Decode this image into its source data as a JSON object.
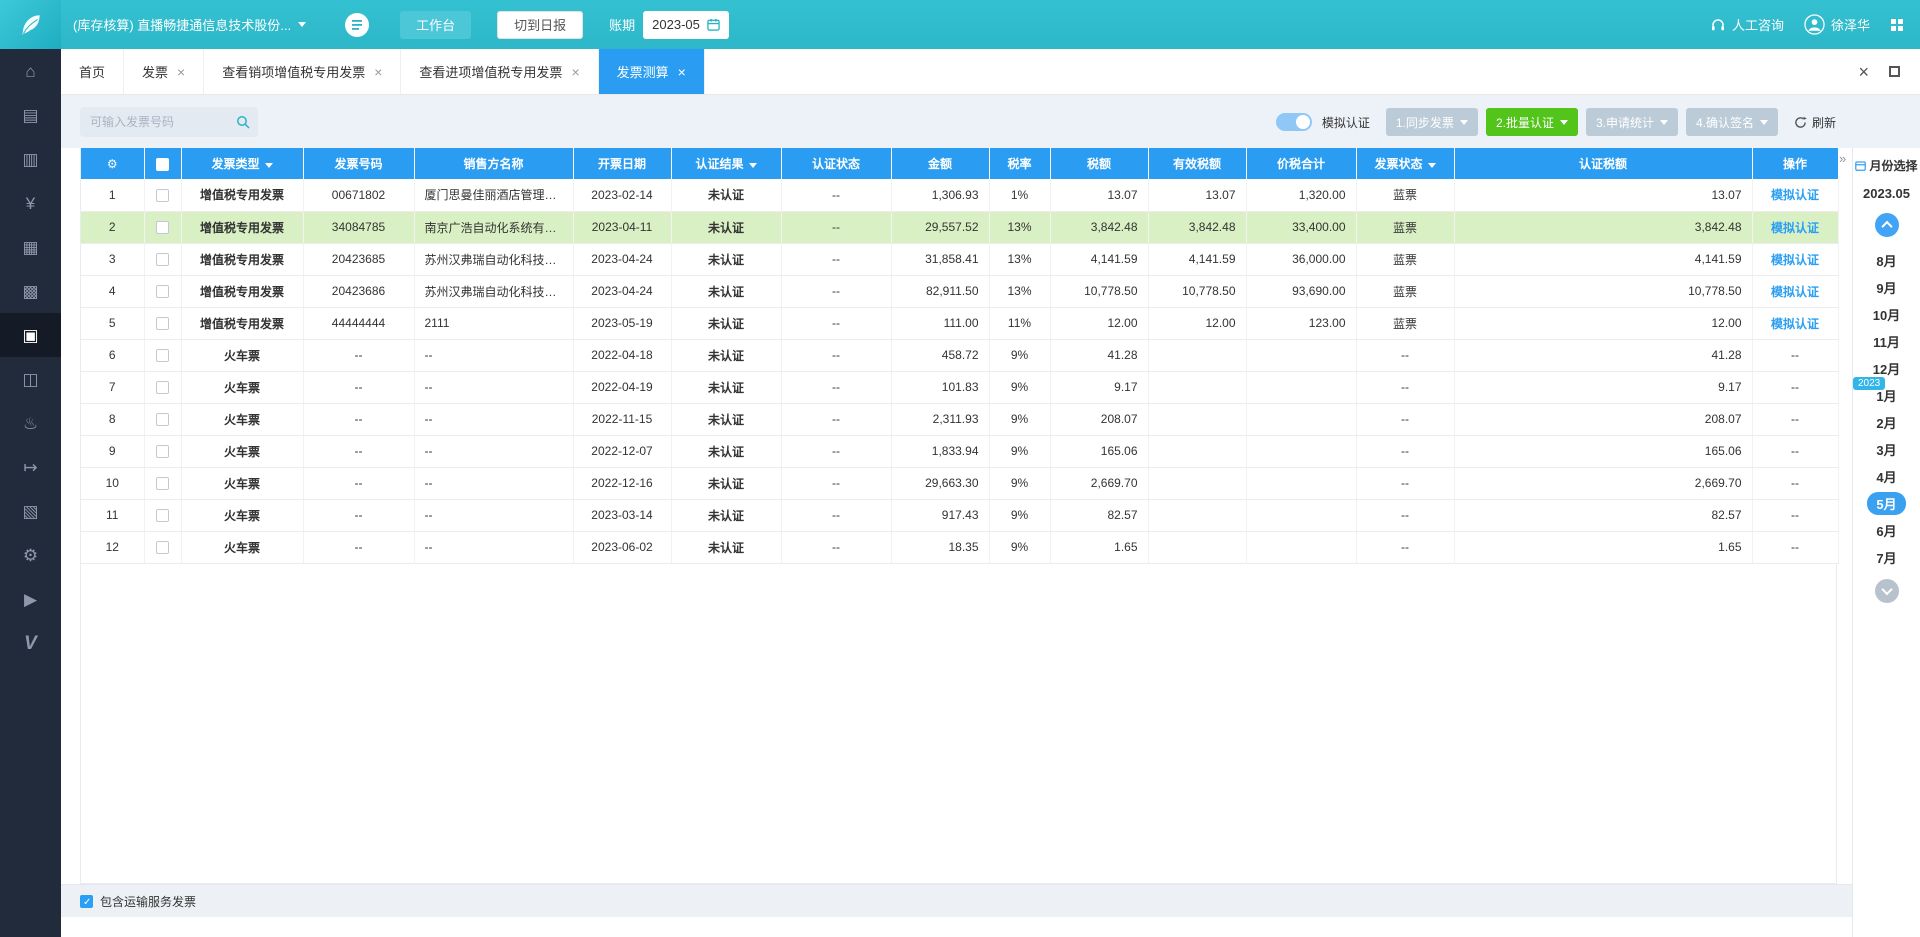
{
  "colors": {
    "topbar_teal": "#2db7c8",
    "sidebar_navy": "#212b3b",
    "primary_blue": "#2a9df2",
    "success_green": "#52c41a",
    "row_highlight": "#d9f0c5",
    "link_blue": "#2a9ff3"
  },
  "topbar": {
    "company": "(库存核算) 直播畅捷通信息技术股份...",
    "workbench": "工作台",
    "switch_daily": "切到日报",
    "period_label": "账期",
    "period_value": "2023-05",
    "support": "人工咨询",
    "user": "徐泽华"
  },
  "sidebar": {
    "items": [
      {
        "name": "home",
        "glyph": "⌂",
        "active": false
      },
      {
        "name": "vouchers",
        "glyph": "▤",
        "active": false
      },
      {
        "name": "reports",
        "glyph": "▥",
        "active": false
      },
      {
        "name": "funds",
        "glyph": "¥",
        "active": false
      },
      {
        "name": "ledger",
        "glyph": "▦",
        "active": false
      },
      {
        "name": "modules",
        "glyph": "▩",
        "active": false
      },
      {
        "name": "inventory",
        "glyph": "▣",
        "active": true
      },
      {
        "name": "assets",
        "glyph": "◫",
        "active": false
      },
      {
        "name": "services",
        "glyph": "♨",
        "active": false
      },
      {
        "name": "checkout",
        "glyph": "↦",
        "active": false
      },
      {
        "name": "archive",
        "glyph": "▧",
        "active": false
      },
      {
        "name": "settings",
        "glyph": "⚙",
        "active": false
      },
      {
        "name": "training",
        "glyph": "▶",
        "active": false
      },
      {
        "name": "brand",
        "glyph": "V",
        "active": false
      }
    ]
  },
  "tabs": [
    {
      "label": "首页",
      "closable": false,
      "active": false
    },
    {
      "label": "发票",
      "closable": true,
      "active": false
    },
    {
      "label": "查看销项增值税专用发票",
      "closable": true,
      "active": false
    },
    {
      "label": "查看进项增值税专用发票",
      "closable": true,
      "active": false
    },
    {
      "label": "发票测算",
      "closable": true,
      "active": true
    }
  ],
  "toolbar": {
    "search_placeholder": "可输入发票号码",
    "toggle_label": "模拟认证",
    "toggle_on": true,
    "buttons": [
      {
        "label": "1.同步发票",
        "primary": false
      },
      {
        "label": "2.批量认证",
        "primary": true
      },
      {
        "label": "3.申请统计",
        "primary": false
      },
      {
        "label": "4.确认签名",
        "primary": false
      }
    ],
    "refresh": "刷新"
  },
  "table": {
    "headers": [
      {
        "label": "发票类型",
        "caret": true
      },
      {
        "label": "发票号码",
        "caret": false
      },
      {
        "label": "销售方名称",
        "caret": false
      },
      {
        "label": "开票日期",
        "caret": false
      },
      {
        "label": "认证结果",
        "caret": true
      },
      {
        "label": "认证状态",
        "caret": false
      },
      {
        "label": "金额",
        "caret": false
      },
      {
        "label": "税率",
        "caret": false
      },
      {
        "label": "税额",
        "caret": false
      },
      {
        "label": "有效税额",
        "caret": false
      },
      {
        "label": "价税合计",
        "caret": false
      },
      {
        "label": "发票状态",
        "caret": true
      },
      {
        "label": "认证税额",
        "caret": false
      },
      {
        "label": "操作",
        "caret": false
      }
    ],
    "rows": [
      {
        "num": "1",
        "type": "增值税专用发票",
        "no": "00671802",
        "seller": "厦门思曼佳丽酒店管理有限...",
        "date": "2023-02-14",
        "result": "未认证",
        "status": "--",
        "amount": "1,306.93",
        "rate": "1%",
        "tax": "13.07",
        "valid_tax": "13.07",
        "total": "1,320.00",
        "inv_status": "蓝票",
        "cert_tax": "13.07",
        "action": "模拟认证",
        "highlight": false
      },
      {
        "num": "2",
        "type": "增值税专用发票",
        "no": "34084785",
        "seller": "南京广浩自动化系统有限责...",
        "date": "2023-04-11",
        "result": "未认证",
        "status": "--",
        "amount": "29,557.52",
        "rate": "13%",
        "tax": "3,842.48",
        "valid_tax": "3,842.48",
        "total": "33,400.00",
        "inv_status": "蓝票",
        "cert_tax": "3,842.48",
        "action": "模拟认证",
        "highlight": true
      },
      {
        "num": "3",
        "type": "增值税专用发票",
        "no": "20423685",
        "seller": "苏州汉弗瑞自动化科技有限...",
        "date": "2023-04-24",
        "result": "未认证",
        "status": "--",
        "amount": "31,858.41",
        "rate": "13%",
        "tax": "4,141.59",
        "valid_tax": "4,141.59",
        "total": "36,000.00",
        "inv_status": "蓝票",
        "cert_tax": "4,141.59",
        "action": "模拟认证",
        "highlight": false
      },
      {
        "num": "4",
        "type": "增值税专用发票",
        "no": "20423686",
        "seller": "苏州汉弗瑞自动化科技有限...",
        "date": "2023-04-24",
        "result": "未认证",
        "status": "--",
        "amount": "82,911.50",
        "rate": "13%",
        "tax": "10,778.50",
        "valid_tax": "10,778.50",
        "total": "93,690.00",
        "inv_status": "蓝票",
        "cert_tax": "10,778.50",
        "action": "模拟认证",
        "highlight": false
      },
      {
        "num": "5",
        "type": "增值税专用发票",
        "no": "44444444",
        "seller": "2111",
        "date": "2023-05-19",
        "result": "未认证",
        "status": "--",
        "amount": "111.00",
        "rate": "11%",
        "tax": "12.00",
        "valid_tax": "12.00",
        "total": "123.00",
        "inv_status": "蓝票",
        "cert_tax": "12.00",
        "action": "模拟认证",
        "highlight": false
      },
      {
        "num": "6",
        "type": "火车票",
        "no": "--",
        "seller": "--",
        "date": "2022-04-18",
        "result": "未认证",
        "status": "--",
        "amount": "458.72",
        "rate": "9%",
        "tax": "41.28",
        "valid_tax": "",
        "total": "",
        "inv_status": "--",
        "cert_tax": "41.28",
        "action": "--",
        "highlight": false
      },
      {
        "num": "7",
        "type": "火车票",
        "no": "--",
        "seller": "--",
        "date": "2022-04-19",
        "result": "未认证",
        "status": "--",
        "amount": "101.83",
        "rate": "9%",
        "tax": "9.17",
        "valid_tax": "",
        "total": "",
        "inv_status": "--",
        "cert_tax": "9.17",
        "action": "--",
        "highlight": false
      },
      {
        "num": "8",
        "type": "火车票",
        "no": "--",
        "seller": "--",
        "date": "2022-11-15",
        "result": "未认证",
        "status": "--",
        "amount": "2,311.93",
        "rate": "9%",
        "tax": "208.07",
        "valid_tax": "",
        "total": "",
        "inv_status": "--",
        "cert_tax": "208.07",
        "action": "--",
        "highlight": false
      },
      {
        "num": "9",
        "type": "火车票",
        "no": "--",
        "seller": "--",
        "date": "2022-12-07",
        "result": "未认证",
        "status": "--",
        "amount": "1,833.94",
        "rate": "9%",
        "tax": "165.06",
        "valid_tax": "",
        "total": "",
        "inv_status": "--",
        "cert_tax": "165.06",
        "action": "--",
        "highlight": false
      },
      {
        "num": "10",
        "type": "火车票",
        "no": "--",
        "seller": "--",
        "date": "2022-12-16",
        "result": "未认证",
        "status": "--",
        "amount": "29,663.30",
        "rate": "9%",
        "tax": "2,669.70",
        "valid_tax": "",
        "total": "",
        "inv_status": "--",
        "cert_tax": "2,669.70",
        "action": "--",
        "highlight": false
      },
      {
        "num": "11",
        "type": "火车票",
        "no": "--",
        "seller": "--",
        "date": "2023-03-14",
        "result": "未认证",
        "status": "--",
        "amount": "917.43",
        "rate": "9%",
        "tax": "82.57",
        "valid_tax": "",
        "total": "",
        "inv_status": "--",
        "cert_tax": "82.57",
        "action": "--",
        "highlight": false
      },
      {
        "num": "12",
        "type": "火车票",
        "no": "--",
        "seller": "--",
        "date": "2023-06-02",
        "result": "未认证",
        "status": "--",
        "amount": "18.35",
        "rate": "9%",
        "tax": "1.65",
        "valid_tax": "",
        "total": "",
        "inv_status": "--",
        "cert_tax": "1.65",
        "action": "--",
        "highlight": false
      }
    ]
  },
  "month_panel": {
    "title": "月份选择",
    "current": "2023.05",
    "year_badge": "2023",
    "badge_before": "1月",
    "months": [
      "8月",
      "9月",
      "10月",
      "11月",
      "12月",
      "1月",
      "2月",
      "3月",
      "4月",
      "5月",
      "6月",
      "7月"
    ],
    "selected": "5月"
  },
  "footer": {
    "transport_checkbox_label": "包含运输服务发票",
    "checked": true
  }
}
